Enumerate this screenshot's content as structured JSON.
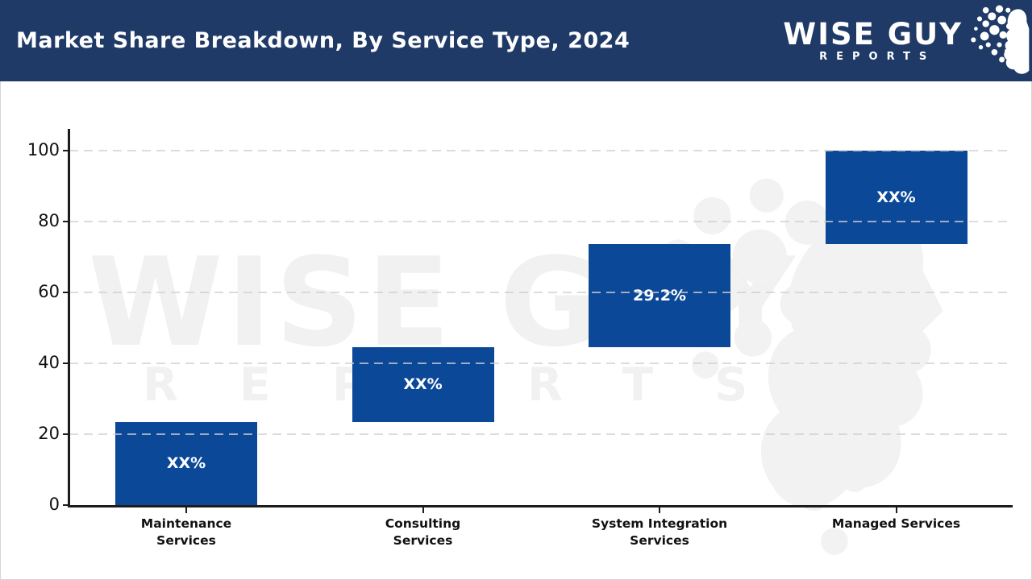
{
  "header": {
    "title": "Market Share Breakdown, By Service Type, 2024",
    "bg_color": "#1f3a67",
    "logo": {
      "line1": "WISE GUY",
      "line2": "REPORTS"
    }
  },
  "watermark": {
    "line1": "WISE GUY",
    "line2": "REPORTS"
  },
  "chart_data": {
    "type": "bar",
    "subtype": "waterfall",
    "title": "Market Share Breakdown, By Service Type, 2024",
    "categories": [
      [
        "Maintenance",
        "Services"
      ],
      [
        "Consulting",
        "Services"
      ],
      [
        "System Integration",
        "Services"
      ],
      [
        "Managed Services"
      ]
    ],
    "segments": [
      {
        "category": "Maintenance Services",
        "start": 0,
        "end": 23.5,
        "label": "XX%"
      },
      {
        "category": "Consulting Services",
        "start": 23.5,
        "end": 44.5,
        "label": "XX%"
      },
      {
        "category": "System Integration Services",
        "start": 44.5,
        "end": 73.7,
        "label": "29.2%"
      },
      {
        "category": "Managed Services",
        "start": 73.7,
        "end": 100,
        "label": "XX%"
      }
    ],
    "ylim": [
      0,
      100
    ],
    "yticks": [
      0,
      20,
      40,
      60,
      80,
      100
    ],
    "grid": "horizontal-dashed",
    "legend": "none",
    "bar_color": "#0b4898",
    "bar_label_color": "#ffffff",
    "axis_color": "#1c1c1c"
  }
}
